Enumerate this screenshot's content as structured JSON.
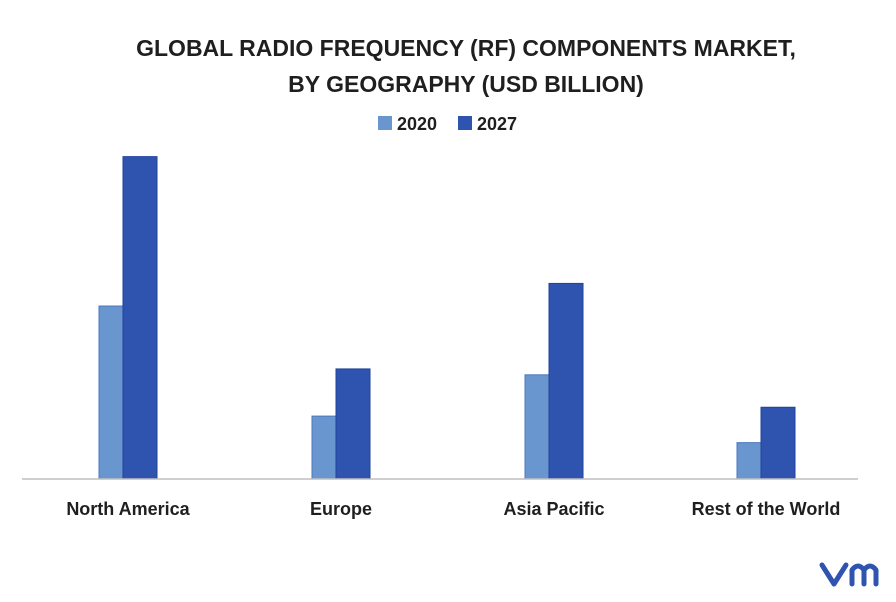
{
  "chart_data": {
    "type": "bar",
    "title_line1": "GLOBAL RADIO FREQUENCY (RF) COMPONENTS MARKET,",
    "title_line2": "BY GEOGRAPHY (USD BILLION)",
    "xlabel": "",
    "ylabel": "",
    "categories": [
      "North America",
      "Europe",
      "Asia Pacific",
      "Rest of the World"
    ],
    "series": [
      {
        "name": "2020",
        "color": "#6a96cf",
        "values": [
          17.6,
          6.4,
          10.6,
          3.7
        ]
      },
      {
        "name": "2027",
        "color": "#2f54b0",
        "values": [
          32.8,
          11.2,
          19.9,
          7.3
        ]
      }
    ],
    "ylim": [
      0,
      35
    ],
    "grid": false,
    "legend_position": "top-center",
    "watermark": "vmr",
    "watermark_color": "#2f54b0"
  }
}
